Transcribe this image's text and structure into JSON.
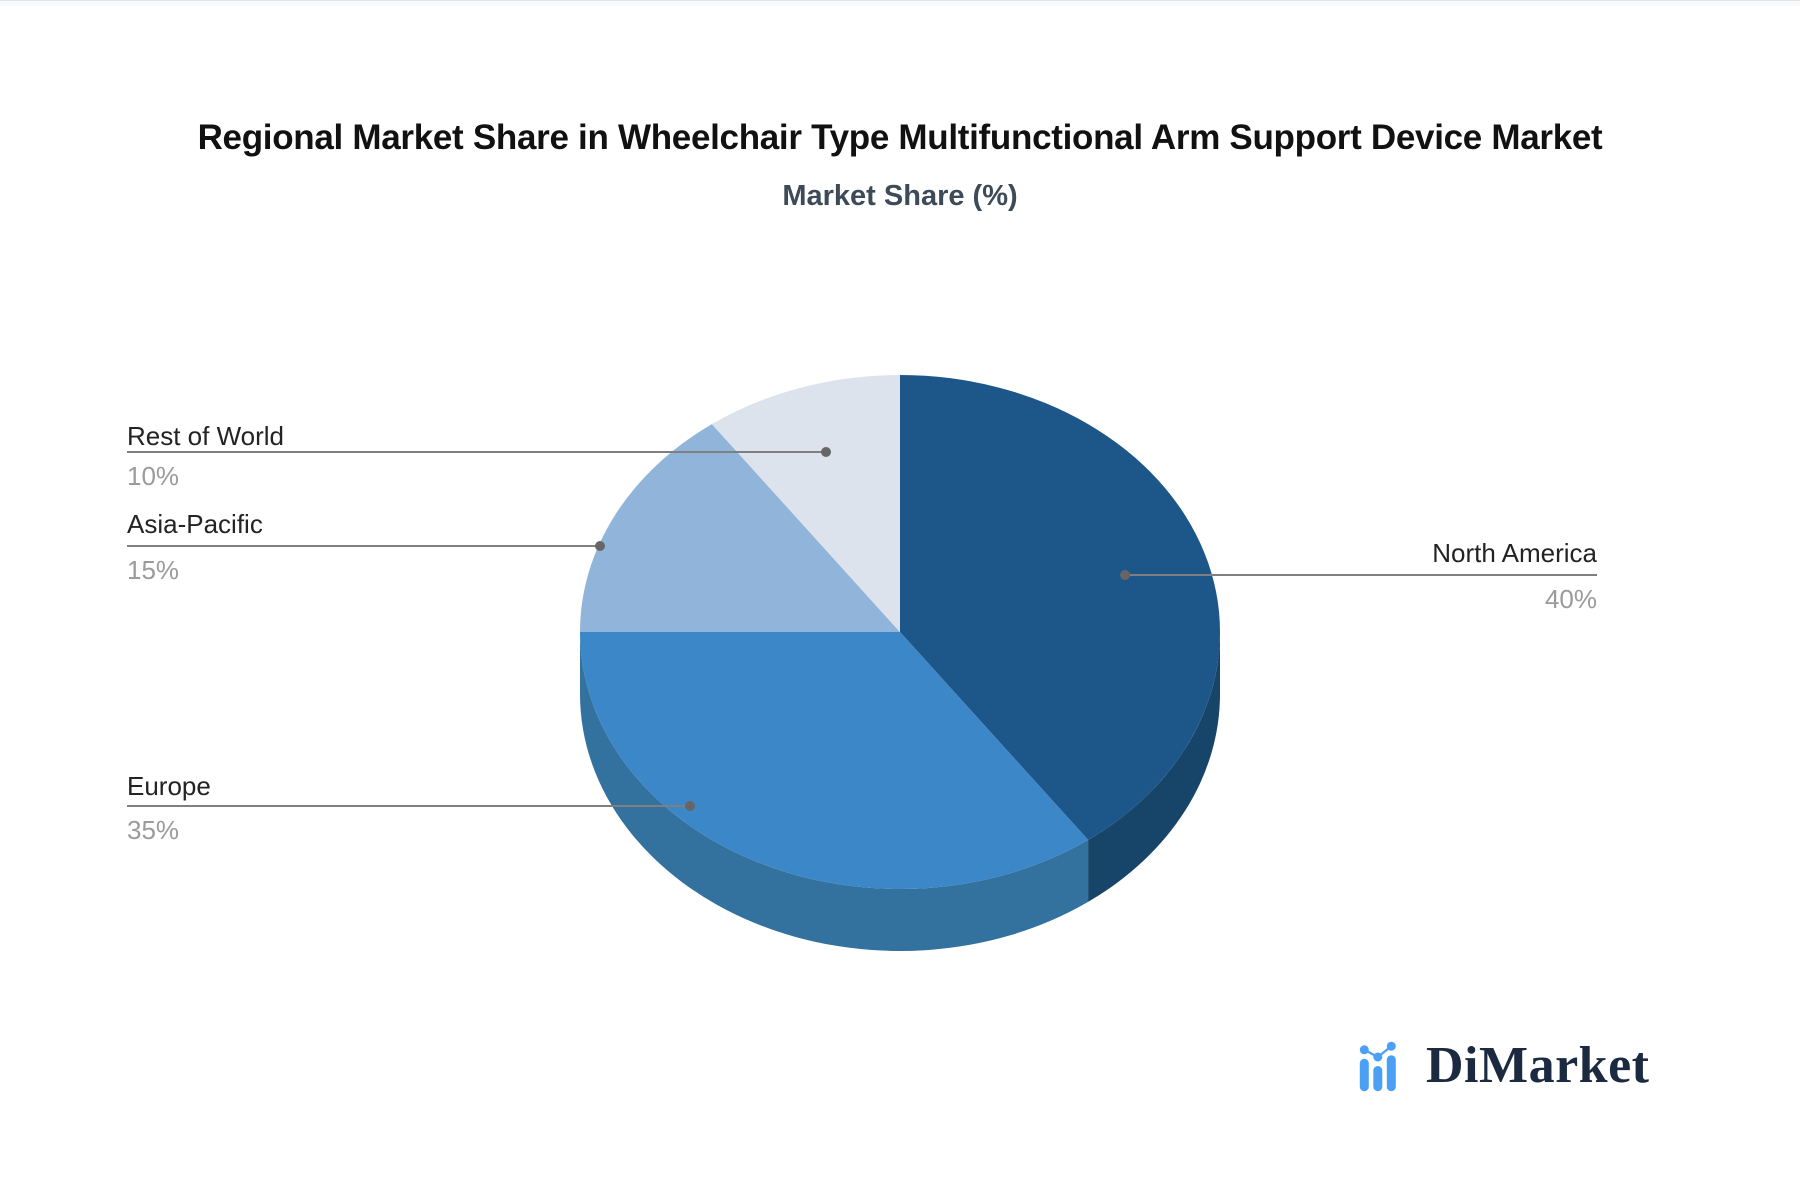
{
  "page": {
    "title": "Regional Market Share in Wheelchair Type Multifunctional Arm Support Device Market",
    "subtitle": "Market Share (%)"
  },
  "chart_data": {
    "type": "pie",
    "style": "3d",
    "title": "Regional Market Share in Wheelchair Type Multifunctional Arm Support Device Market",
    "subtitle": "Market Share (%)",
    "unit": "%",
    "start_angle_deg": 0,
    "direction": "clockwise",
    "legend_position": "callout-labels",
    "slices": [
      {
        "label": "North America",
        "value": 40,
        "value_label": "40%",
        "color": "#1d5789",
        "side_color": "#174569"
      },
      {
        "label": "Europe",
        "value": 35,
        "value_label": "35%",
        "color": "#3c87c8",
        "side_color": "#33719f"
      },
      {
        "label": "Asia-Pacific",
        "value": 15,
        "value_label": "15%",
        "color": "#91b4da",
        "side_color": "#7597ba"
      },
      {
        "label": "Rest of World",
        "value": 10,
        "value_label": "10%",
        "color": "#dde3ed",
        "side_color": "#b9c4d4"
      }
    ]
  },
  "branding": {
    "logo_text": "DiMarket",
    "logo_text_color": "#1b2a41",
    "logo_accent_color": "#4aa0f4"
  },
  "colors": {
    "background": "#ffffff",
    "title_text": "#111111",
    "subtitle_text": "#3d4a57",
    "label_text": "#232323",
    "percent_text": "#9b9b9b",
    "leader_line": "#7f7f7f",
    "leader_dot": "#666666"
  }
}
